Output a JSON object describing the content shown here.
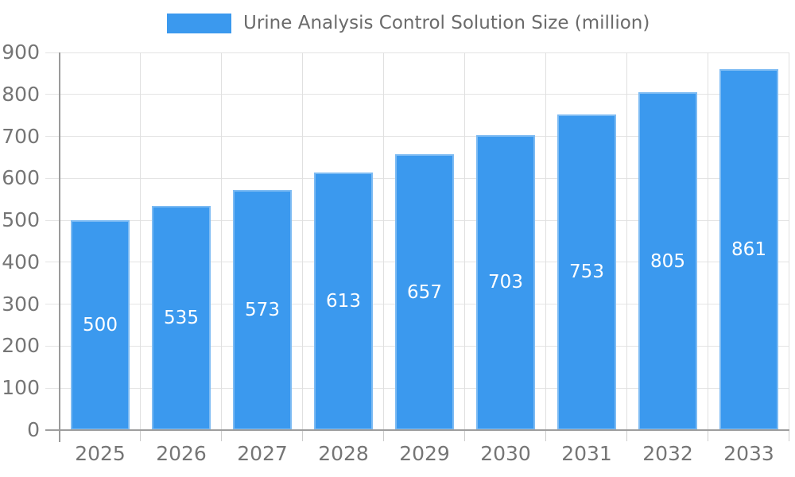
{
  "legend": {
    "label": "Urine Analysis Control Solution Size (million)"
  },
  "chart_data": {
    "type": "bar",
    "title": "Urine Analysis Control Solution Size (million)",
    "categories": [
      "2025",
      "2026",
      "2027",
      "2028",
      "2029",
      "2030",
      "2031",
      "2032",
      "2033"
    ],
    "series": [
      {
        "name": "Urine Analysis Control Solution Size (million)",
        "values": [
          500,
          535,
          573,
          613,
          657,
          703,
          753,
          805,
          861
        ]
      }
    ],
    "xlabel": "",
    "ylabel": "",
    "ylim": [
      0,
      900
    ],
    "yticks": [
      0,
      100,
      200,
      300,
      400,
      500,
      600,
      700,
      800,
      900
    ],
    "grid": true,
    "legend_position": "top-center",
    "value_label_position": "inside-center",
    "colors": {
      "bar_fill": "#3B99EE",
      "bar_border": "#7dbbf3",
      "value_label": "#ffffff",
      "grid_line": "#e4e4e4",
      "axis_line": "#9e9e9e",
      "axis_text": "#757575",
      "legend_text": "#6b6b6b",
      "background": "#ffffff"
    }
  }
}
